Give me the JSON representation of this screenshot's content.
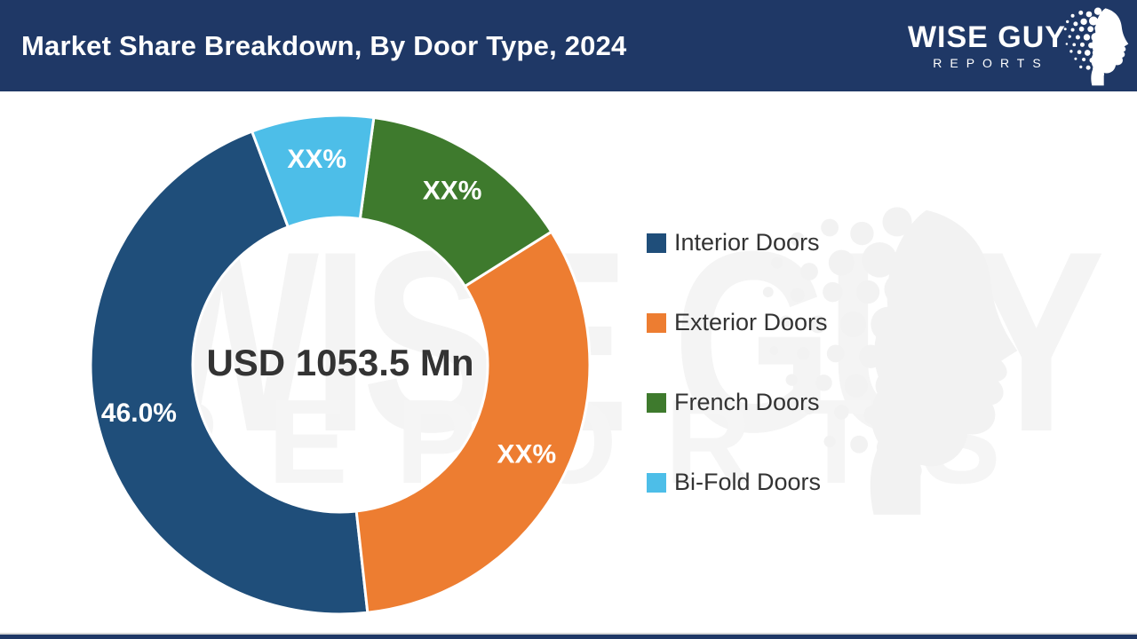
{
  "header": {
    "title": "Market Share Breakdown, By Door Type, 2024",
    "logo": {
      "line1": "WISE GUY",
      "line2": "REPORTS"
    }
  },
  "watermark": {
    "line1": "WISE GUY",
    "line2": "REPORTS"
  },
  "chart_data": {
    "type": "pie",
    "style": "donut",
    "title": "Market Share Breakdown, By Door Type, 2024",
    "center_label": "USD 1053.5 Mn",
    "legend_position": "right",
    "direction": "counterclockwise",
    "start_angle_deg": 110.7,
    "units": "percent of market share",
    "segments": [
      {
        "label": "Interior Doors",
        "value": 46.0,
        "display_label": "46.0%",
        "color": "#1f4e7a"
      },
      {
        "label": "Exterior Doors",
        "value": 32.2,
        "display_label": "XX%",
        "color": "#ed7d31"
      },
      {
        "label": "French Doors",
        "value": 13.9,
        "display_label": "XX%",
        "color": "#3e7a2d"
      },
      {
        "label": "Bi-Fold Doors",
        "value": 7.9,
        "display_label": "XX%",
        "color": "#4dbee8"
      }
    ]
  }
}
